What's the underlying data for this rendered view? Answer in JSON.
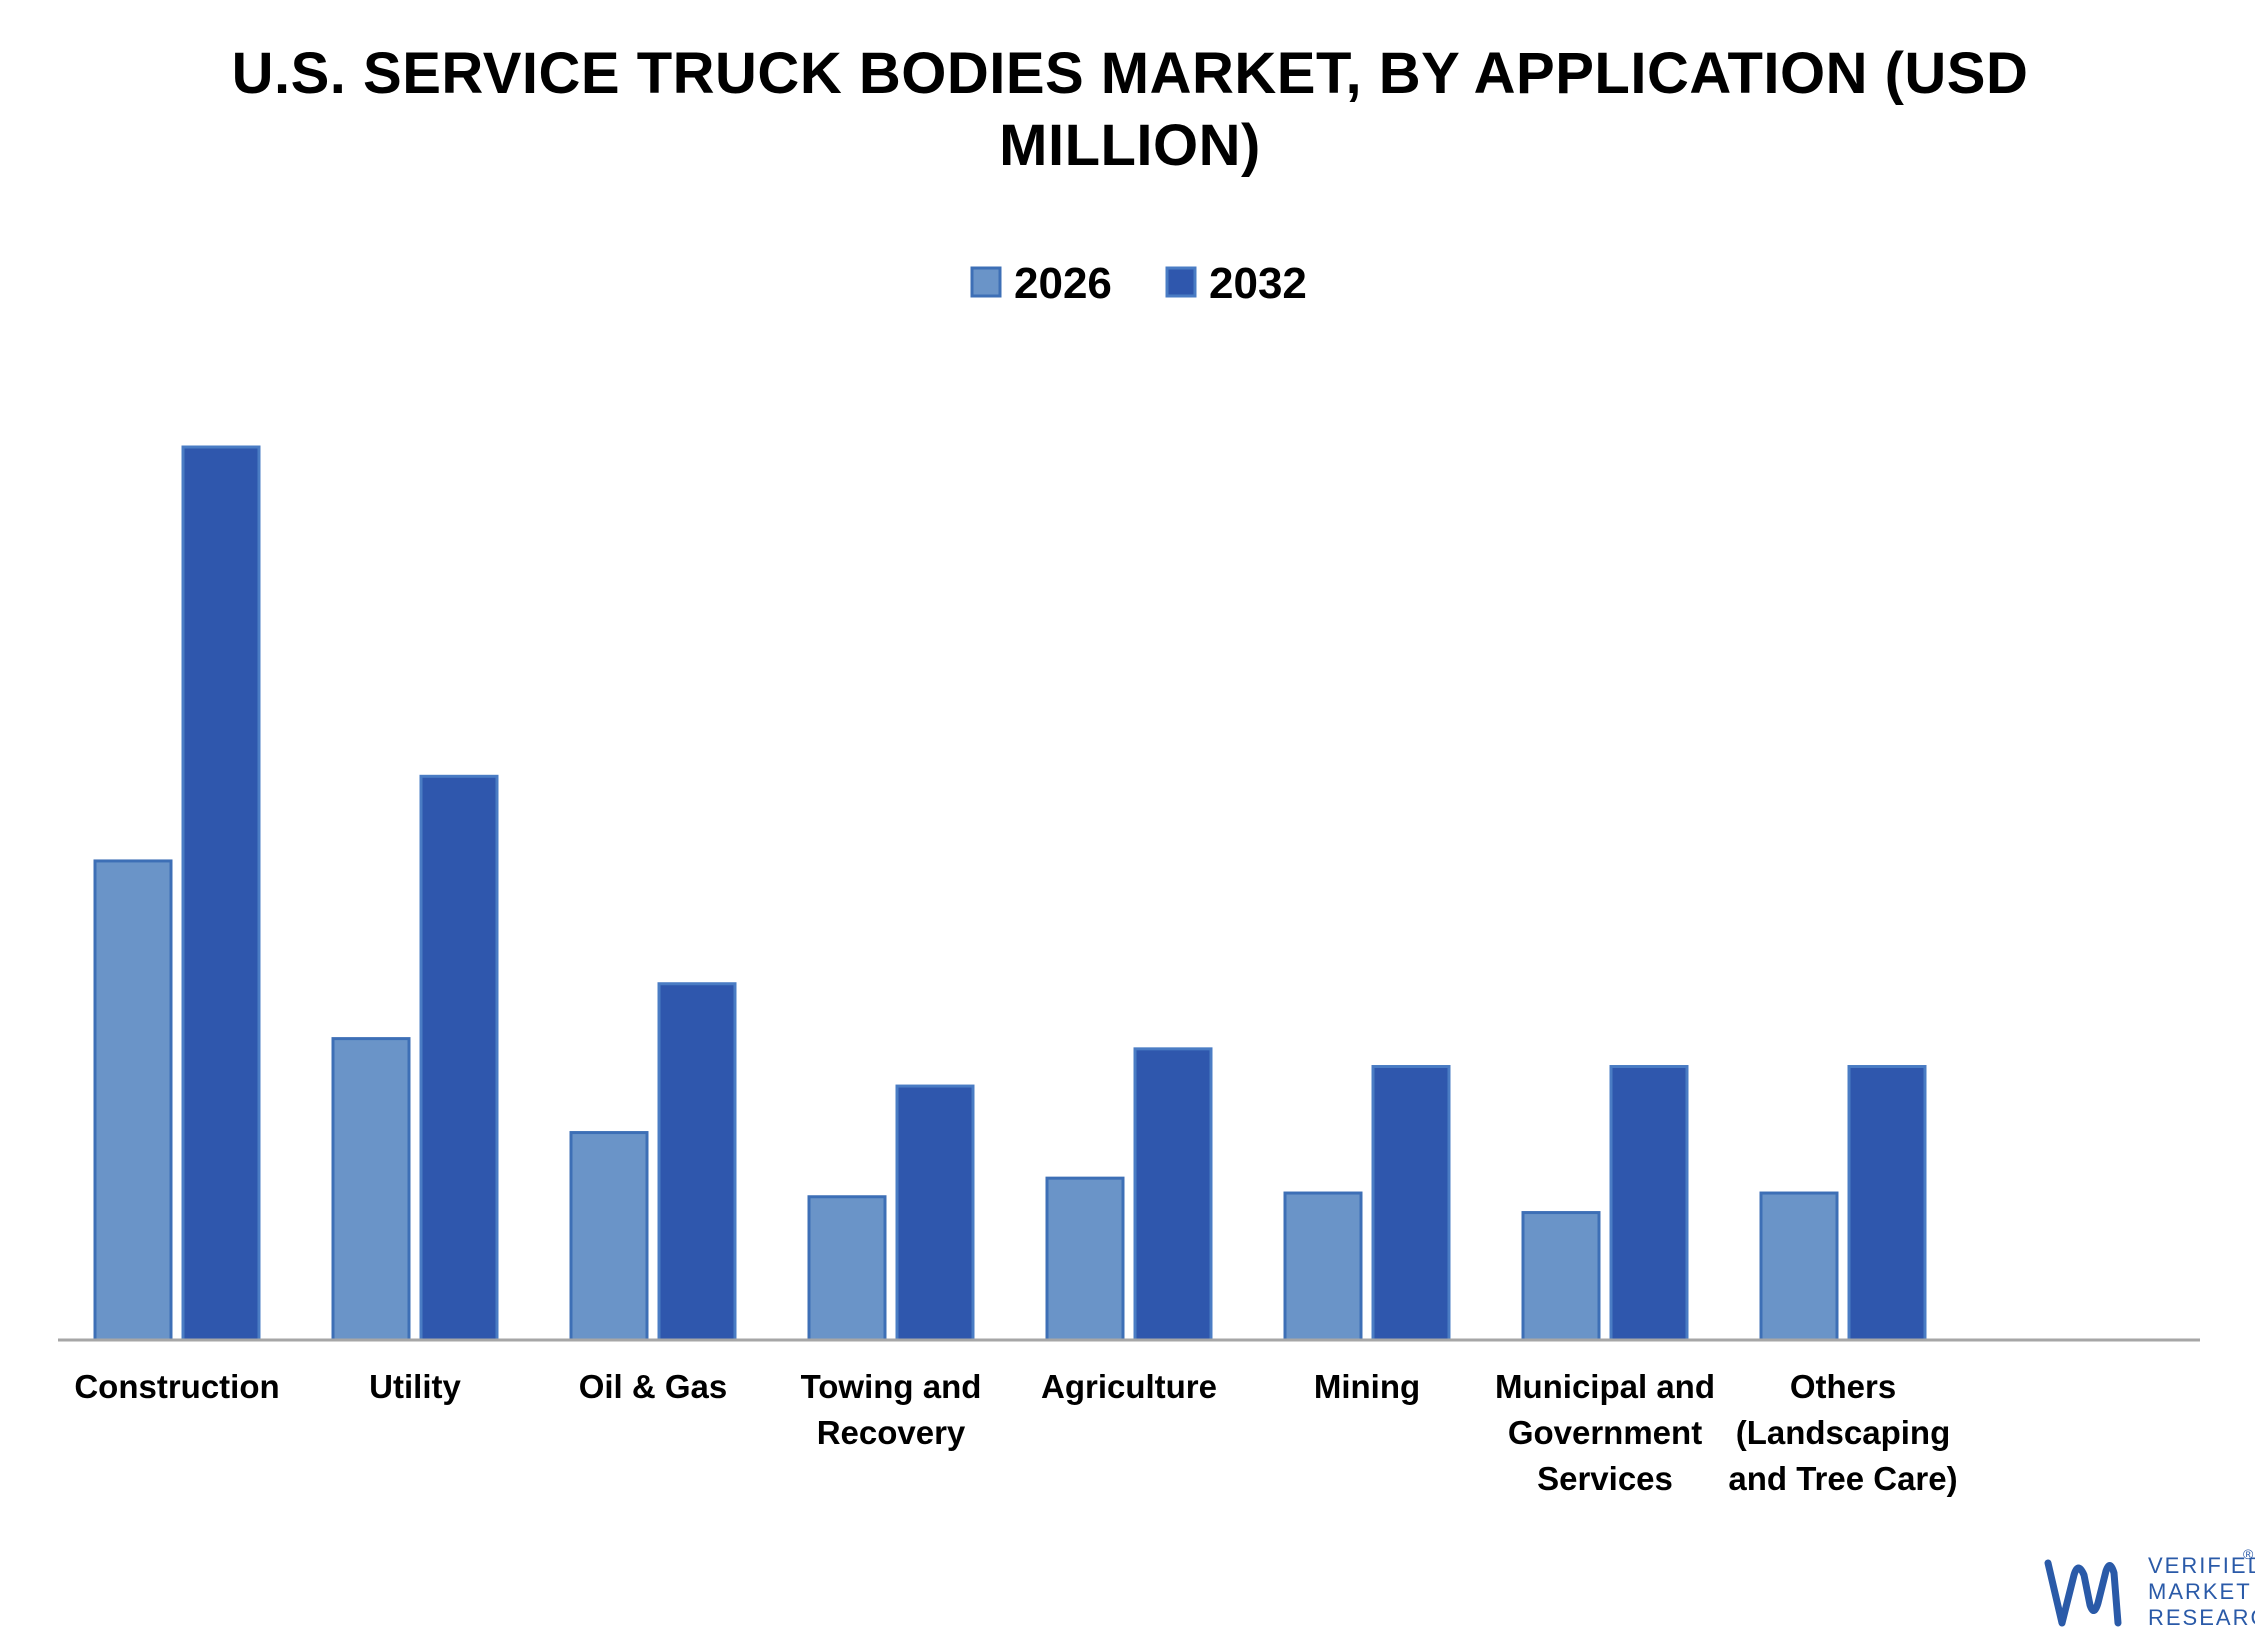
{
  "chart_data": {
    "type": "bar",
    "title": "U.S. SERVICE TRUCK BODIES MARKET, BY APPLICATION (USD MILLION)",
    "title_lines": [
      "U.S. SERVICE TRUCK BODIES MARKET, BY APPLICATION (USD",
      "MILLION)"
    ],
    "categories": [
      [
        "Construction"
      ],
      [
        "Utility"
      ],
      [
        "Oil & Gas"
      ],
      [
        "Towing and",
        "Recovery"
      ],
      [
        "Agriculture"
      ],
      [
        "Mining"
      ],
      [
        "Municipal and",
        "Government",
        "Services"
      ],
      [
        "Others",
        "(Landscaping",
        "and Tree Care)"
      ]
    ],
    "series": [
      {
        "name": "2026",
        "color": "#6a94c8",
        "stroke": "#3d6fb6",
        "values": [
          51.5,
          32.4,
          22.3,
          15.4,
          17.4,
          15.8,
          13.7,
          15.8
        ]
      },
      {
        "name": "2032",
        "color": "#2f57ad",
        "stroke": "#4a7cc4",
        "values": [
          96.0,
          60.6,
          38.3,
          27.3,
          31.3,
          29.4,
          29.4,
          29.4
        ]
      }
    ],
    "ylim": [
      0,
      100
    ],
    "legend_position": "top-center",
    "grid": false,
    "axis_color": "#a6a6a6"
  },
  "brand": {
    "logo_icon": "vmr-logo-icon",
    "logo_lines": [
      "VERIFIED",
      "MARKET",
      "RESEARCH"
    ],
    "registered": "®",
    "color": "#2a5aa8"
  }
}
